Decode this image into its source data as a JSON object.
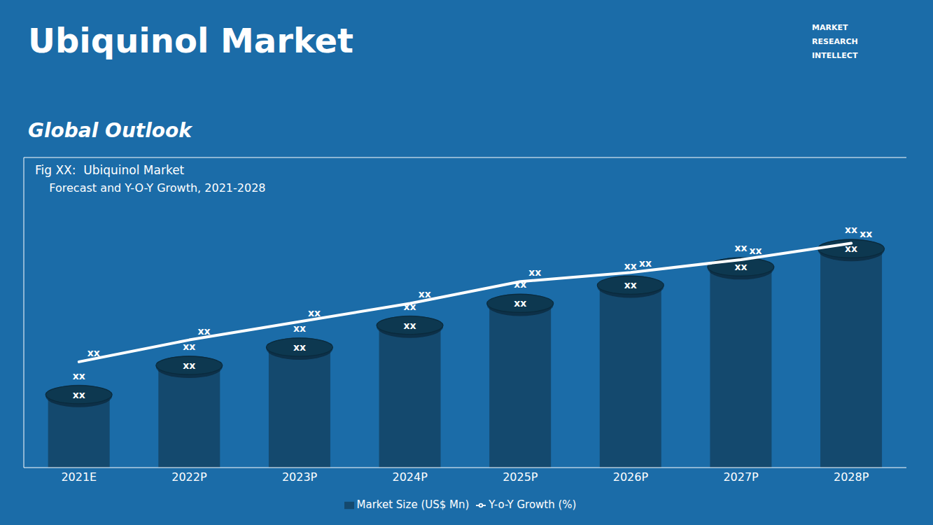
{
  "chart_data": {
    "type": "bar",
    "title": "Ubiquinol Market",
    "subtitle": "Global Outlook",
    "annotations": [
      "Fig XX:  Ubiquinol Market",
      "    Forecast and Y-O-Y Growth, 2021-2028",
      "MARKET",
      "RESEARCH",
      "INTELLECT"
    ],
    "categories": [
      "2021E",
      "2022P",
      "2023P",
      "2024P",
      "2025P",
      "2026P",
      "2027P",
      "2028P"
    ],
    "series": [
      {
        "name": "Market Size (US$ Mn)",
        "type": "bar",
        "color": "#14496e",
        "values": [
          2.0,
          2.8,
          3.3,
          3.9,
          4.5,
          5.0,
          5.5,
          6.0
        ],
        "value_labels": [
          "xx",
          "xx",
          "xx",
          "xx",
          "xx",
          "xx",
          "xx",
          "xx"
        ]
      },
      {
        "name": "Y-o-Y Growth (%)",
        "type": "line",
        "color": "#ffffff",
        "values": [
          2.9,
          3.5,
          4.0,
          4.5,
          5.1,
          5.35,
          5.7,
          6.15
        ],
        "value_labels": [
          "xx",
          "xx",
          "xx",
          "xx",
          "xx",
          "xx",
          "xx",
          "xx"
        ]
      }
    ],
    "ylim": [
      0,
      8.5
    ],
    "tick_labels": "x",
    "grid": false,
    "legend": "bottom",
    "data_labels": true
  }
}
